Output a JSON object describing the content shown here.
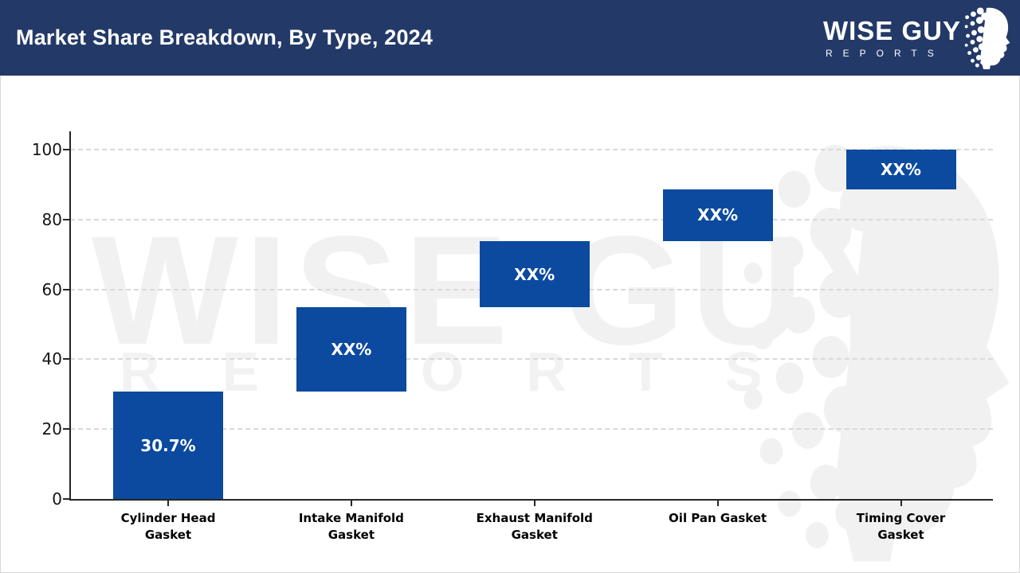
{
  "header": {
    "title": "Market Share Breakdown, By Type, 2024",
    "logo": {
      "wordmark": "WISE GUY",
      "sub": "REPORTS"
    }
  },
  "watermark": {
    "wordmark": "WISE GUY",
    "sub": "REPORTS"
  },
  "colors": {
    "header_bg": "#233A68",
    "bar": "#0B4A9F",
    "grid": "#d9d9d9",
    "axis": "#262626",
    "bar_label_text": "#ffffff",
    "watermark": "#f1f1f2"
  },
  "chart_data": {
    "type": "bar",
    "subtype": "waterfall",
    "title": "Market Share Breakdown, By Type, 2024",
    "categories": [
      "Cylinder Head Gasket",
      "Intake Manifold Gasket",
      "Exhaust Manifold Gasket",
      "Oil Pan Gasket",
      "Timing Cover Gasket"
    ],
    "category_lines": [
      [
        "Cylinder Head",
        "Gasket"
      ],
      [
        "Intake Manifold",
        "Gasket"
      ],
      [
        "Exhaust Manifold",
        "Gasket"
      ],
      [
        "Oil Pan Gasket"
      ],
      [
        "Timing Cover",
        "Gasket"
      ]
    ],
    "series": [
      {
        "name": "Market Share (%)",
        "segments": [
          {
            "category": "Cylinder Head Gasket",
            "start": 0,
            "end": 30.7,
            "label": "30.7%"
          },
          {
            "category": "Intake Manifold Gasket",
            "start": 30.7,
            "end": 54.9,
            "label": "XX%"
          },
          {
            "category": "Exhaust Manifold Gasket",
            "start": 54.9,
            "end": 73.8,
            "label": "XX%"
          },
          {
            "category": "Oil Pan Gasket",
            "start": 73.8,
            "end": 88.7,
            "label": "XX%"
          },
          {
            "category": "Timing Cover Gasket",
            "start": 88.7,
            "end": 100,
            "label": "XX%"
          }
        ]
      }
    ],
    "xlabel": "",
    "ylabel": "",
    "ylim": [
      0,
      100
    ],
    "y_ticks": [
      0,
      20,
      40,
      60,
      80,
      100
    ],
    "grid": "horizontal-dashed",
    "legend": "none"
  }
}
